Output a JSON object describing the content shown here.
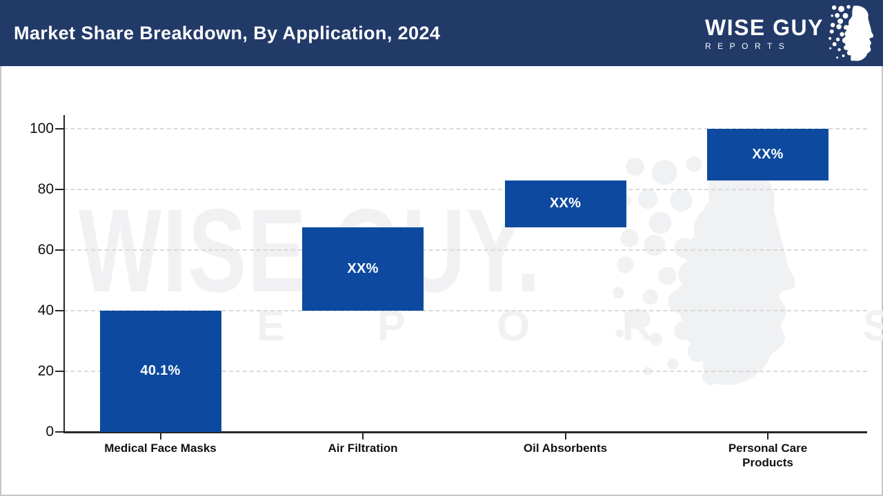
{
  "header": {
    "title": "Market Share Breakdown, By Application, 2024",
    "logo": {
      "line1": "WISE GUY",
      "line2": "REPORTS"
    }
  },
  "watermark": {
    "line1": "WISE GUY.",
    "line2": "R E P O R T S"
  },
  "chart_data": {
    "type": "bar",
    "subtype": "floating-waterfall",
    "title": "Market Share Breakdown, By Application, 2024",
    "categories": [
      "Medical Face Masks",
      "Air Filtration",
      "Oil Absorbents",
      "Personal Care Products"
    ],
    "category_display_lines": [
      [
        "Medical Face Masks"
      ],
      [
        "Air Filtration"
      ],
      [
        "Oil Absorbents"
      ],
      [
        "Personal Care",
        "Products"
      ]
    ],
    "bars": [
      {
        "category": "Medical Face Masks",
        "start": 0,
        "end": 40.1,
        "label": "40.1%"
      },
      {
        "category": "Air Filtration",
        "start": 40.1,
        "end": 67.5,
        "label": "XX%"
      },
      {
        "category": "Oil Absorbents",
        "start": 67.5,
        "end": 83.0,
        "label": "XX%"
      },
      {
        "category": "Personal Care Products",
        "start": 83.0,
        "end": 100.0,
        "label": "XX%"
      }
    ],
    "xlabel": "",
    "ylabel": "",
    "yticks": [
      0,
      20,
      40,
      60,
      80,
      100
    ],
    "ylim": [
      0,
      104.5
    ],
    "grid": "horizontal-dashed",
    "legend": "none",
    "colors": {
      "bar": "#0d4a9f",
      "bar_label": "#ffffff",
      "grid": "#d9d9d9",
      "axis": "#262626",
      "header_bg": "#223a68",
      "watermark": "#f1f1f3"
    }
  }
}
